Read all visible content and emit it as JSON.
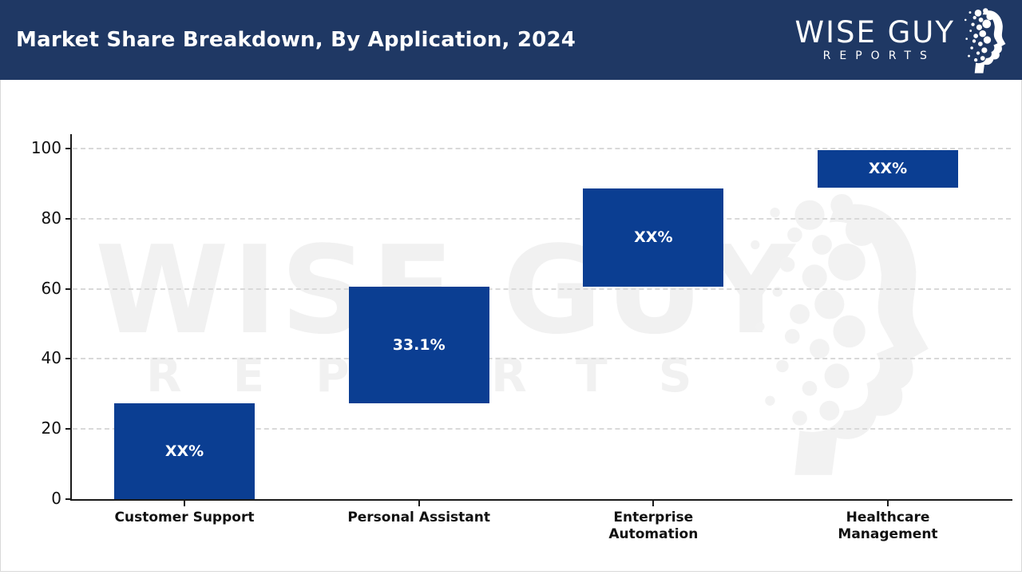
{
  "header": {
    "title": "Market Share Breakdown, By Application, 2024",
    "bg_color": "#1f3864",
    "logo": {
      "line1": "WISE GUY",
      "line2": "REPORTS",
      "icon": "dotted-head-profile-icon"
    }
  },
  "watermark": {
    "line1": "WISE GUY",
    "line2": "REPORTS",
    "icon": "dotted-head-profile-icon"
  },
  "chart_data": {
    "type": "bar",
    "subtype": "waterfall-floating-bars",
    "title": "Market Share Breakdown, By Application, 2024",
    "categories": [
      "Customer Support",
      "Personal Assistant",
      "Enterprise\nAutomation",
      "Healthcare\nManagement"
    ],
    "segments": [
      {
        "category": "Customer Support",
        "start": 0,
        "end": 27.4,
        "bar_label": "XX%"
      },
      {
        "category": "Personal Assistant",
        "start": 27.4,
        "end": 60.5,
        "bar_label": "33.1%"
      },
      {
        "category": "Enterprise Automation",
        "start": 60.6,
        "end": 88.6,
        "bar_label": "XX%"
      },
      {
        "category": "Healthcare Management",
        "start": 88.9,
        "end": 99.6,
        "bar_label": "XX%"
      }
    ],
    "xlabel": "",
    "ylabel": "",
    "ylim": [
      0,
      100
    ],
    "yticks": [
      0,
      20,
      40,
      60,
      80,
      100
    ],
    "grid": "horizontal-dashed",
    "legend": "none",
    "bar_color": "#0b3e92",
    "bar_label_color": "#ffffff",
    "axis_color": "#1a1a1a",
    "gridline_color": "#d9d9d9"
  }
}
